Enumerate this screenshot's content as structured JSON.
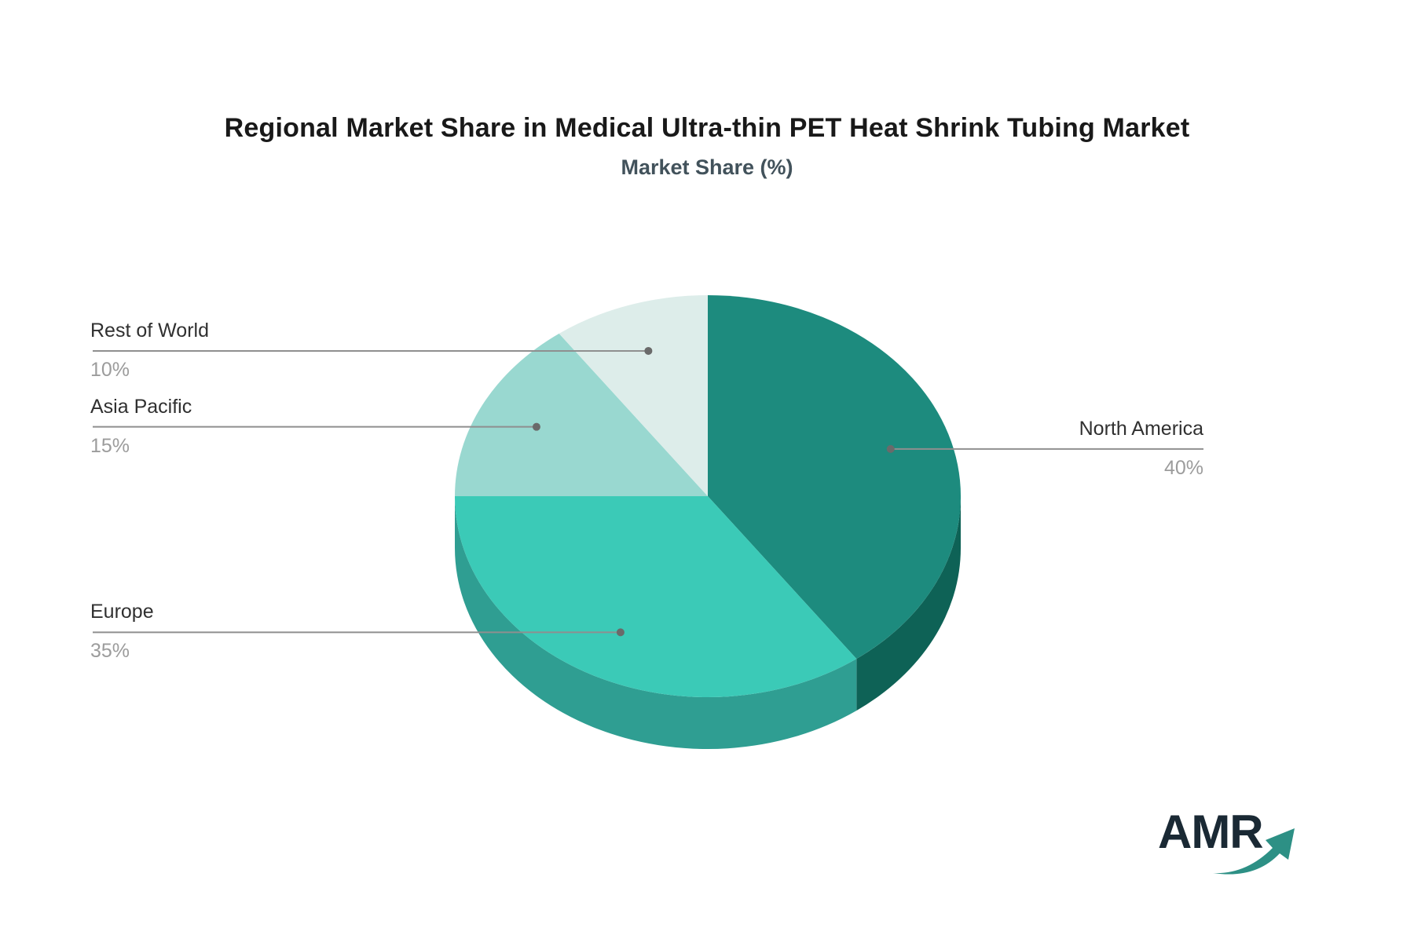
{
  "chart_data": {
    "type": "pie",
    "style": "3d",
    "title": "Regional Market Share in Medical Ultra-thin PET Heat Shrink Tubing Market",
    "subtitle": "Market Share (%)",
    "unit": "%",
    "start_angle": "12-oclock",
    "direction": "clockwise",
    "legend_position": "none",
    "label_style": "leader-lines",
    "slices": [
      {
        "label": "North America",
        "value": 40,
        "value_label": "40%",
        "color": "#1d8b7e",
        "side_color": "#0e6256"
      },
      {
        "label": "Europe",
        "value": 35,
        "value_label": "35%",
        "color": "#3bcab7",
        "side_color": "#2f9e92"
      },
      {
        "label": "Asia Pacific",
        "value": 15,
        "value_label": "15%",
        "color": "#99d8d0",
        "side_color": "#7fbdb5"
      },
      {
        "label": "Rest of World",
        "value": 10,
        "value_label": "10%",
        "color": "#ddedea",
        "side_color": "#bcd6d2"
      }
    ]
  },
  "logo": {
    "text": "AMR",
    "text_color": "#1a2934",
    "arrow_color": "#2d9085"
  },
  "colors": {
    "background": "#ffffff",
    "title": "#191919",
    "subtitle": "#42525b",
    "leader_line": "#8f8f8f",
    "dot": "#6a6a6a",
    "label_text": "#303030",
    "value_text": "#9c9c9c"
  }
}
